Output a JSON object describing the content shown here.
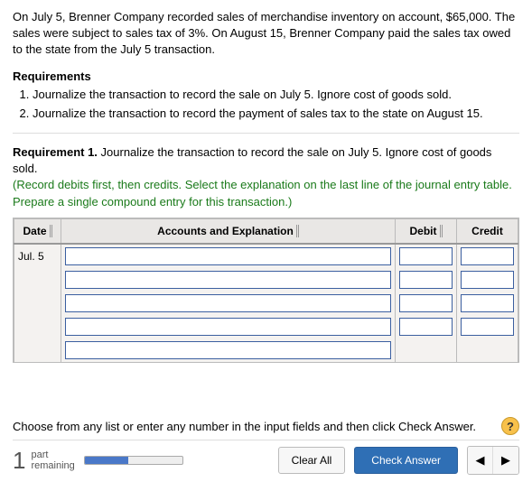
{
  "problem": {
    "text": "On July 5, Brenner Company recorded sales of merchandise inventory on account, $65,000. The sales were subject to sales tax of 3%. On August 15, Brenner Company paid the sales tax owed to the state from the July 5 transaction."
  },
  "requirements": {
    "heading": "Requirements",
    "items": [
      "Journalize the transaction to record the sale on July 5. Ignore cost of goods sold.",
      "Journalize the transaction to record the payment of sales tax to the state on August 15."
    ]
  },
  "req1": {
    "label": "Requirement 1.",
    "text": " Journalize the transaction to record the sale on July 5. Ignore cost of goods sold.",
    "note": "(Record debits first, then credits. Select the explanation on the last line of the journal entry table. Prepare a single compound entry for this transaction.)"
  },
  "journal": {
    "headers": {
      "date": "Date",
      "acct": "Accounts and Explanation",
      "debit": "Debit",
      "credit": "Credit"
    },
    "rows": [
      {
        "date": "Jul. 5",
        "hasDebit": true,
        "hasCredit": true
      },
      {
        "date": "",
        "hasDebit": true,
        "hasCredit": true
      },
      {
        "date": "",
        "hasDebit": true,
        "hasCredit": true
      },
      {
        "date": "",
        "hasDebit": true,
        "hasCredit": true
      },
      {
        "date": "",
        "hasDebit": false,
        "hasCredit": false
      }
    ]
  },
  "footer": {
    "chooseText": "Choose from any list or enter any number in the input fields and then click Check Answer.",
    "helpIcon": "?",
    "partNumber": "1",
    "partLabel1": "part",
    "partLabel2": "remaining",
    "progressPct": 45,
    "clearAll": "Clear All",
    "checkAnswer": "Check Answer",
    "prevIcon": "◀",
    "nextIcon": "▶"
  },
  "colors": {
    "inputBorder": "#3b5fa0",
    "tableBg": "#f4f2f0",
    "primaryBtn": "#2f6fb5",
    "greenNote": "#1a7a1a",
    "helpBadge": "#f8c14b"
  }
}
